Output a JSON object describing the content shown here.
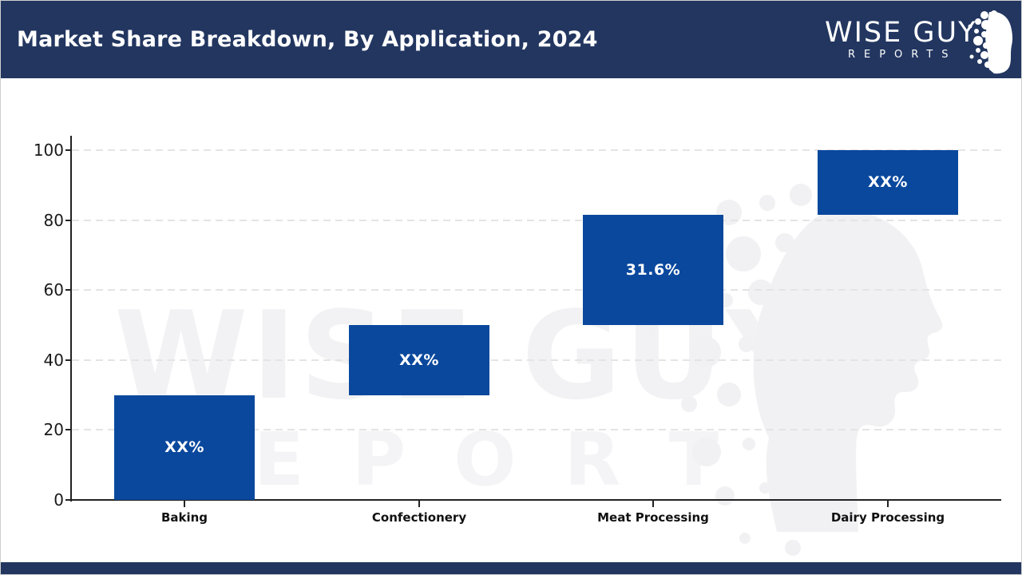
{
  "header": {
    "title": "Market Share Breakdown, By Application, 2024",
    "logo": {
      "line1": "WISE GUY",
      "line2": "REPORTS"
    }
  },
  "watermark": {
    "line1": "WISE GUY",
    "line2": "REPORTS"
  },
  "chart_data": {
    "type": "bar",
    "subtype": "waterfall",
    "title": "Market Share Breakdown, By Application, 2024",
    "categories": [
      "Baking",
      "Confectionery",
      "Meat Processing",
      "Dairy Processing"
    ],
    "segments": [
      {
        "category": "Baking",
        "start": 0,
        "end": 30,
        "label": "XX%"
      },
      {
        "category": "Confectionery",
        "start": 30,
        "end": 50,
        "label": "XX%"
      },
      {
        "category": "Meat Processing",
        "start": 50,
        "end": 81.6,
        "label": "31.6%"
      },
      {
        "category": "Dairy Processing",
        "start": 81.6,
        "end": 100,
        "label": "XX%"
      }
    ],
    "y_ticks": [
      0,
      20,
      40,
      60,
      80,
      100
    ],
    "ylim": [
      0,
      100
    ],
    "xlabel": "",
    "ylabel": "",
    "grid": "dashed-horizontal",
    "legend": "none"
  },
  "colors": {
    "header_bg": "#223660",
    "footer_bg": "#223660",
    "bar": "#0A489D",
    "bar_label": "#ffffff",
    "grid": "#e4e4e4",
    "axis": "#222222",
    "watermark": "#f2f2f4"
  }
}
